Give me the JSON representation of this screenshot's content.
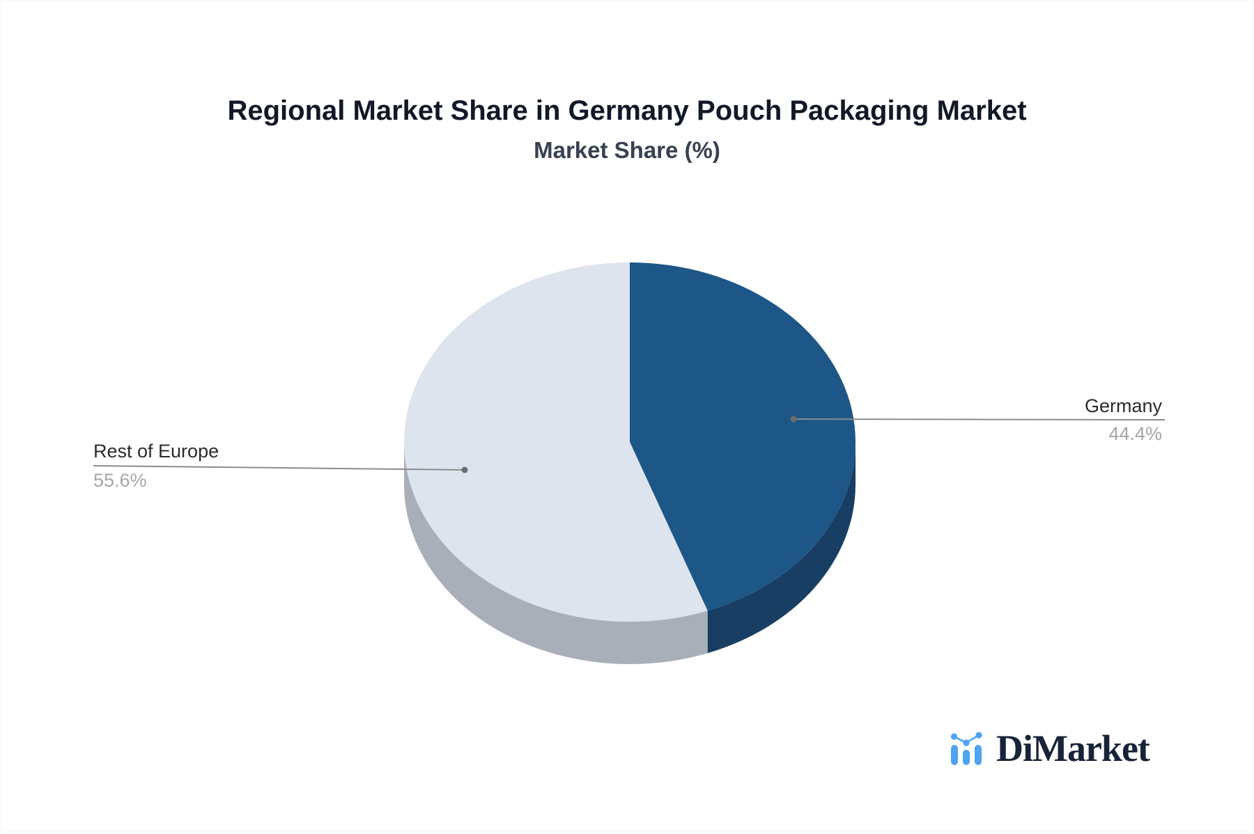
{
  "title": "Regional Market Share in Germany Pouch Packaging Market",
  "subtitle": "Market Share (%)",
  "brand": {
    "name": "DiMarket",
    "wordmark_color": "#172338",
    "icon_color": "#4FA3F2"
  },
  "colors": {
    "background": "#FFFFFF",
    "title": "#111827",
    "subtitle": "#374151",
    "label_name": "#2B2B2B",
    "label_value": "#A6A6A6",
    "connector_line": "#8B8B8B",
    "connector_dot": "#6E6E6E"
  },
  "chart_data": {
    "type": "pie",
    "style": "3d",
    "title": "Regional Market Share in Germany Pouch Packaging Market",
    "subtitle": "Market Share (%)",
    "unit": "%",
    "start_angle_deg": 0,
    "direction": "clockwise",
    "legend": "none",
    "labels": "outside-with-connectors",
    "slices": [
      {
        "label": "Germany",
        "value": 44.4,
        "display": "44.4%",
        "color": "#1D5787",
        "side_color": "#183E63"
      },
      {
        "label": "Rest of Europe",
        "value": 55.6,
        "display": "55.6%",
        "color": "#DDE4EE",
        "side_color": "#A8AFB9"
      }
    ]
  }
}
